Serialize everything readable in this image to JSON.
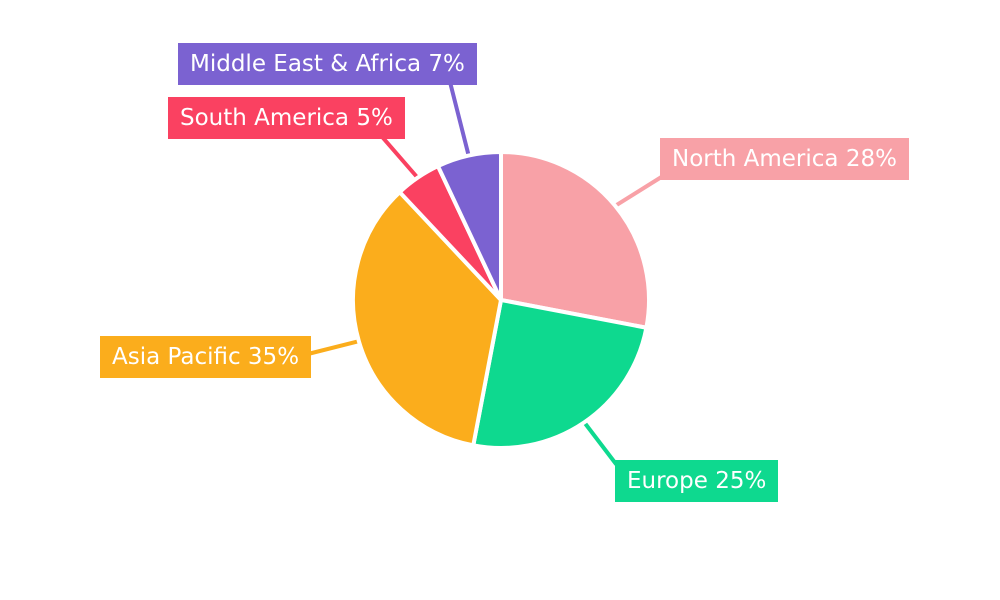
{
  "chart_data": {
    "type": "pie",
    "title": "",
    "legend_position": "none",
    "background_color": "#FFFFFF",
    "start_angle_deg": 0,
    "direction": "clockwise",
    "categories": [
      "North America",
      "Europe",
      "Asia Pacific",
      "South America",
      "Middle East & Africa"
    ],
    "values": [
      28,
      25,
      35,
      5,
      7
    ],
    "unit": "%",
    "slices": [
      {
        "name": "North America",
        "value": 28,
        "color": "#F8A1A7",
        "label": "North America 28%"
      },
      {
        "name": "Europe",
        "value": 25,
        "color": "#0ED98F",
        "label": "Europe 25%"
      },
      {
        "name": "Asia Pacific",
        "value": 35,
        "color": "#FBAD1C",
        "label": "Asia Pacific 35%"
      },
      {
        "name": "South America",
        "value": 5,
        "color": "#FA4161",
        "label": "South America 5%"
      },
      {
        "name": "Middle East & Africa",
        "value": 7,
        "color": "#7B62D1",
        "label": "Middle East & Africa 7%"
      }
    ]
  }
}
